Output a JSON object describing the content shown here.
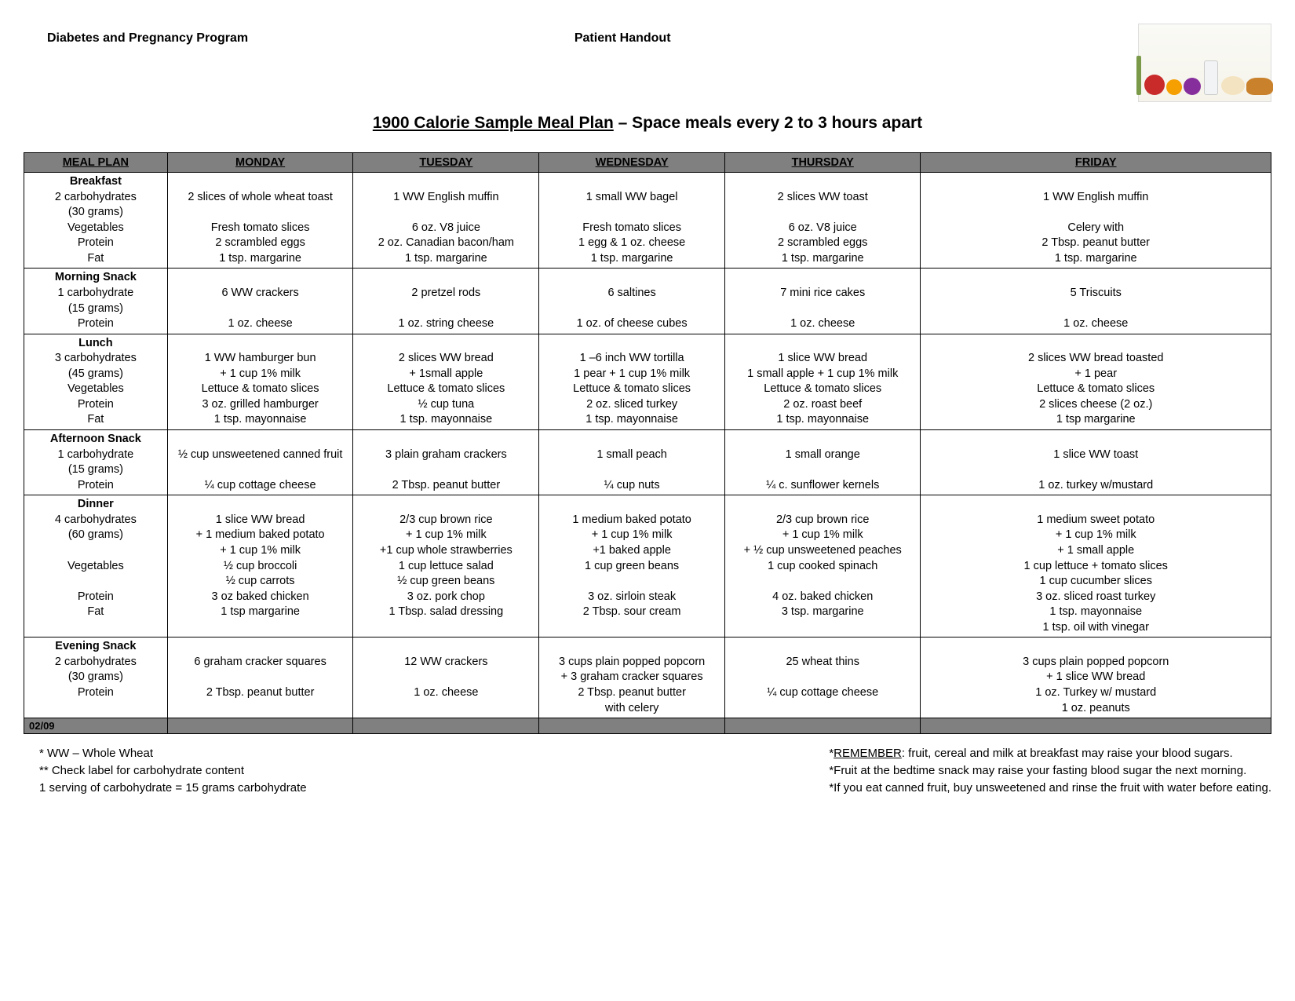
{
  "header": {
    "program": "Diabetes and Pregnancy Program",
    "handout": "Patient Handout"
  },
  "title": {
    "underlined": "1900 Calorie Sample Meal Plan",
    "rest": " – Space meals every 2 to 3 hours apart"
  },
  "table": {
    "columns": [
      "MEAL PLAN",
      "MONDAY",
      "TUESDAY",
      "WEDNESDAY",
      "THURSDAY",
      "FRIDAY"
    ],
    "rows": [
      {
        "label": {
          "name": "Breakfast",
          "lines": "2 carbohydrates\n(30 grams)\nVegetables\nProtein\nFat"
        },
        "mon": "\n2 slices of whole wheat toast\n\nFresh tomato slices\n2 scrambled eggs\n1 tsp. margarine",
        "tue": "\n1 WW English muffin\n\n6 oz. V8 juice\n2 oz. Canadian bacon/ham\n1 tsp. margarine",
        "wed": "\n1 small WW bagel\n\nFresh tomato slices\n1 egg & 1 oz. cheese\n1 tsp. margarine",
        "thu": "\n2 slices WW toast\n\n6 oz. V8 juice\n2 scrambled eggs\n1 tsp. margarine",
        "fri": "\n1 WW English muffin\n\nCelery with\n2 Tbsp. peanut butter\n1 tsp. margarine"
      },
      {
        "label": {
          "name": "Morning Snack",
          "lines": "1 carbohydrate\n(15 grams)\nProtein"
        },
        "mon": "\n6 WW crackers\n\n1 oz. cheese",
        "tue": "\n2 pretzel rods\n\n1 oz. string cheese",
        "wed": "\n6 saltines\n\n1 oz. of cheese cubes",
        "thu": "\n7 mini rice cakes\n\n1 oz. cheese",
        "fri": "\n5 Triscuits\n\n1 oz. cheese"
      },
      {
        "label": {
          "name": "Lunch",
          "lines": "3 carbohydrates\n(45 grams)\nVegetables\nProtein\nFat"
        },
        "mon": "\n1 WW hamburger bun\n+ 1 cup 1% milk\nLettuce & tomato slices\n3 oz. grilled hamburger\n1 tsp. mayonnaise",
        "tue": "\n2 slices WW bread\n+ 1small apple\nLettuce & tomato slices\n½ cup tuna\n1 tsp. mayonnaise",
        "wed": "\n1 –6 inch WW tortilla\n1 pear + 1 cup 1% milk\nLettuce & tomato slices\n2 oz. sliced turkey\n1 tsp. mayonnaise",
        "thu": "\n1 slice WW bread\n1 small apple + 1 cup 1% milk\nLettuce & tomato slices\n2 oz. roast beef\n1 tsp. mayonnaise",
        "fri": "\n2 slices WW bread toasted\n+ 1 pear\nLettuce & tomato slices\n2 slices cheese (2 oz.)\n1 tsp margarine"
      },
      {
        "label": {
          "name": "Afternoon Snack",
          "lines": "1 carbohydrate\n(15 grams)\nProtein"
        },
        "mon": "\n½ cup unsweetened canned fruit\n\n¼ cup cottage cheese",
        "tue": "\n3 plain graham crackers\n\n2 Tbsp. peanut butter",
        "wed": "\n1 small peach\n\n¼ cup nuts",
        "thu": "\n1 small orange\n\n¼ c. sunflower kernels",
        "fri": "\n1 slice WW toast\n\n1 oz. turkey w/mustard"
      },
      {
        "label": {
          "name": "Dinner",
          "lines": "4 carbohydrates\n(60 grams)\n\nVegetables\n\nProtein\nFat"
        },
        "mon": "\n1 slice WW bread\n+ 1 medium baked potato\n+ 1 cup 1% milk\n½ cup broccoli\n½ cup carrots\n3 oz baked chicken\n1 tsp margarine",
        "tue": "\n2/3 cup brown rice\n+ 1 cup 1% milk\n+1 cup whole strawberries\n1 cup lettuce salad\n½ cup green beans\n3 oz. pork chop\n1 Tbsp. salad dressing",
        "wed": "\n1 medium baked potato\n+ 1 cup 1% milk\n+1 baked apple\n1 cup green beans\n\n3 oz. sirloin steak\n2 Tbsp. sour cream",
        "thu": "\n2/3 cup brown rice\n+ 1 cup 1% milk\n+ ½ cup unsweetened peaches\n1 cup cooked spinach\n\n4 oz. baked chicken\n3 tsp. margarine",
        "fri": "\n1 medium sweet potato\n+ 1 cup 1% milk\n+ 1 small apple\n1 cup lettuce + tomato slices\n1 cup cucumber slices\n3 oz. sliced roast turkey\n1 tsp. mayonnaise\n1 tsp. oil with vinegar"
      },
      {
        "label": {
          "name": "Evening Snack",
          "lines": "2 carbohydrates\n(30 grams)\nProtein"
        },
        "mon": "\n6 graham cracker squares\n\n2 Tbsp. peanut butter",
        "tue": "\n12 WW crackers\n\n1 oz. cheese",
        "wed": "\n3 cups plain popped popcorn\n+ 3 graham cracker squares\n2 Tbsp. peanut butter\nwith celery",
        "thu": "\n25 wheat thins\n\n¼ cup cottage cheese",
        "fri": "\n3 cups plain popped popcorn\n+ 1 slice WW bread\n1 oz. Turkey w/ mustard\n1 oz. peanuts"
      }
    ],
    "footer_date": "02/09"
  },
  "footnotes": {
    "left": " * WW – Whole Wheat\n** Check label for carbohydrate content\n1 serving of carbohydrate = 15 grams carbohydrate",
    "right_label": "REMEMBER",
    "right_rest": ":  fruit, cereal and milk at breakfast may raise your blood sugars.\n*Fruit at the bedtime snack may raise your fasting blood sugar the next morning.\n*If you eat canned fruit, buy unsweetened and rinse the fruit with water before eating."
  },
  "colors": {
    "header_bg": "#808080",
    "border": "#000000",
    "text": "#000000",
    "page_bg": "#ffffff"
  }
}
